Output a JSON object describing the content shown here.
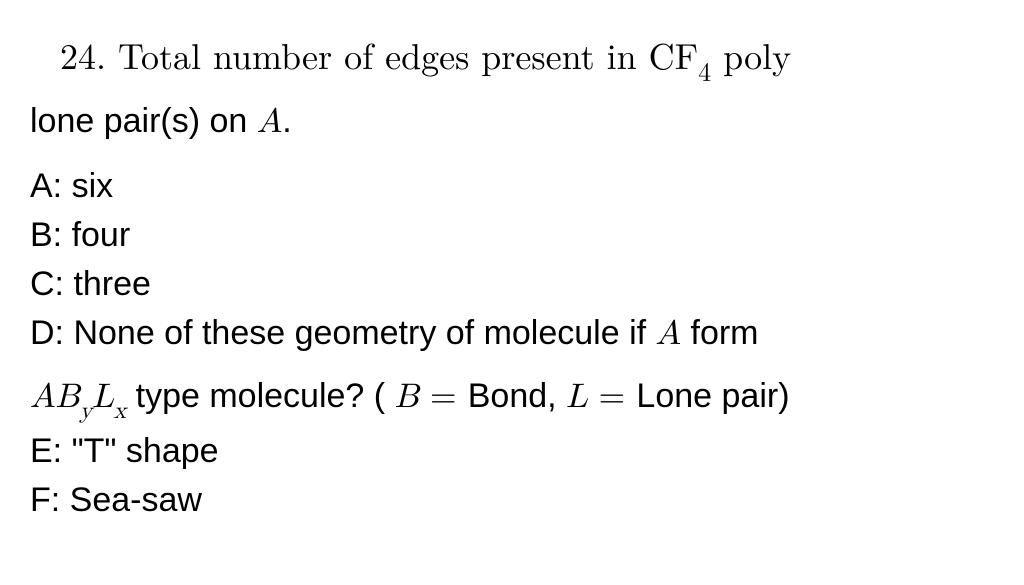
{
  "question": {
    "number": "24.",
    "text_part1": "Total number of edges present in ",
    "formula_cf": "CF",
    "formula_cf_sub": "4",
    "text_part2": " poly",
    "followup_part1": "lone pair(s) on ",
    "followup_var": "A",
    "followup_part2": "."
  },
  "options": {
    "a": {
      "label": "A:",
      "text": "six"
    },
    "b": {
      "label": "B:",
      "text": "four"
    },
    "c": {
      "label": "C:",
      "text": "three"
    },
    "d": {
      "label": "D:",
      "text_part1": "None of these geometry of molecule if ",
      "var": "A",
      "text_part2": " form"
    },
    "formula": {
      "A": "A",
      "B": "B",
      "y": "y",
      "L": "L",
      "x": "x",
      "text1": " type molecule? ( ",
      "Bvar": "B",
      "eq1": " = ",
      "bond": "Bond, ",
      "Lvar": "L",
      "eq2": " = ",
      "lone": "Lone pair)"
    },
    "e": {
      "label": "E:",
      "text": "\"T\" shape"
    },
    "f": {
      "label": "F:",
      "text": "Sea-saw"
    }
  }
}
